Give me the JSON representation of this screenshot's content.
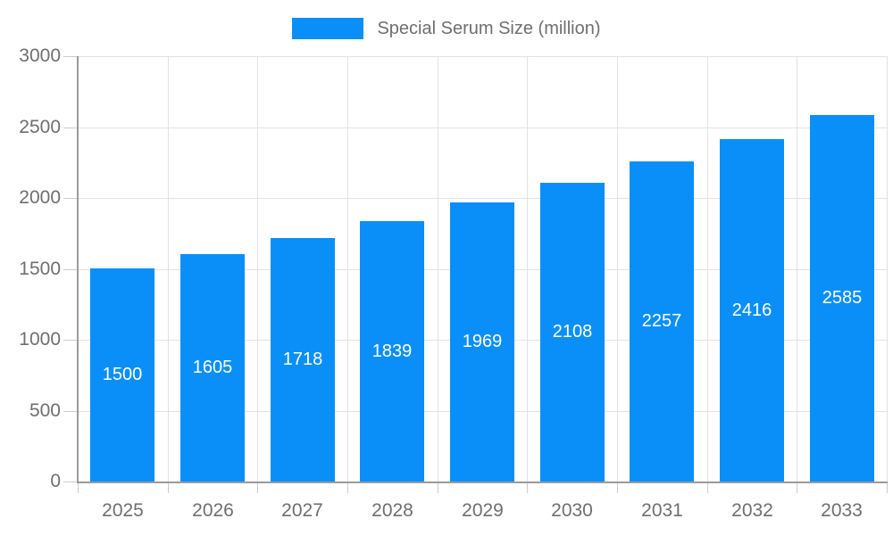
{
  "chart_data": {
    "type": "bar",
    "title": "",
    "legend": [
      "Special Serum Size (million)"
    ],
    "legend_position": "top-center",
    "categories": [
      "2025",
      "2026",
      "2027",
      "2028",
      "2029",
      "2030",
      "2031",
      "2032",
      "2033"
    ],
    "values": [
      1500,
      1605,
      1718,
      1839,
      1969,
      2108,
      2257,
      2416,
      2585
    ],
    "bar_value_labels": [
      "1500",
      "1605",
      "1718",
      "1839",
      "1969",
      "2108",
      "2257",
      "2416",
      "2585"
    ],
    "xlabel": "",
    "ylabel": "",
    "ylim": [
      0,
      3000
    ],
    "yticks": [
      "0",
      "500",
      "1000",
      "1500",
      "2000",
      "2500",
      "3000"
    ],
    "ytick_values": [
      0,
      500,
      1000,
      1500,
      2000,
      2500,
      3000
    ],
    "grid": true,
    "colors": {
      "bar": "#0a8ff9",
      "bar_label": "#ffffff",
      "axis_text": "#6f6f6f",
      "legend_text": "#6f6f6f",
      "grid_line": "#e2e2e2",
      "tick_line": "#cccccc",
      "axis_line": "#9a9a9a",
      "background": "#ffffff"
    }
  }
}
